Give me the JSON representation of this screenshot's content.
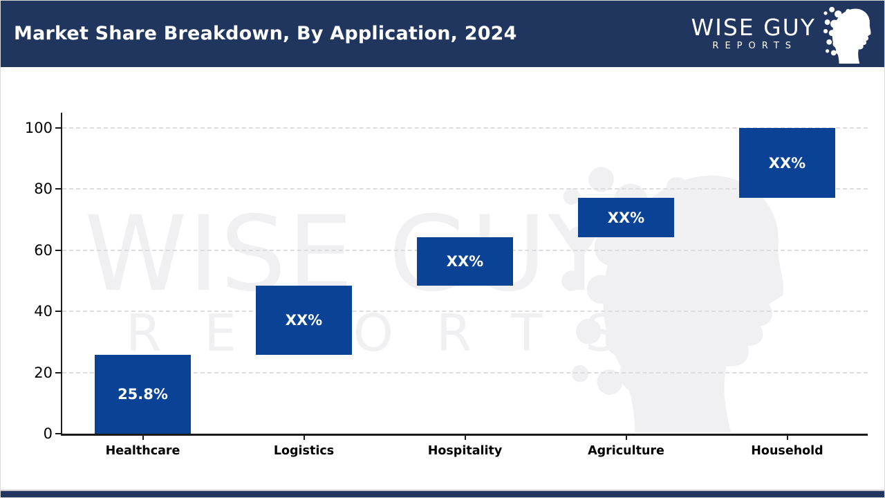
{
  "header": {
    "title": "Market Share Breakdown, By Application, 2024",
    "bg_color": "#21365f",
    "logo": {
      "line1": "WISE GUY",
      "line2": "REPORTS"
    }
  },
  "watermark": {
    "line1": "WISE GUY",
    "line2": "REPORTS"
  },
  "chart_data": {
    "type": "bar",
    "subtype": "waterfall",
    "title": "Market Share Breakdown, By Application, 2024",
    "categories": [
      "Healthcare",
      "Logistics",
      "Hospitality",
      "Agriculture",
      "Household"
    ],
    "segments": [
      {
        "category": "Healthcare",
        "start": 0,
        "end": 25.8,
        "label": "25.8%"
      },
      {
        "category": "Logistics",
        "start": 25.8,
        "end": 48.4,
        "label": "XX%"
      },
      {
        "category": "Hospitality",
        "start": 48.4,
        "end": 64.2,
        "label": "XX%"
      },
      {
        "category": "Agriculture",
        "start": 64.2,
        "end": 77.1,
        "label": "XX%"
      },
      {
        "category": "Household",
        "start": 77.1,
        "end": 100,
        "label": "XX%"
      }
    ],
    "y_ticks": [
      0,
      20,
      40,
      60,
      80,
      100
    ],
    "ylim": [
      0,
      105
    ],
    "xlabel": "",
    "ylabel": "",
    "grid": "horizontal-dashed",
    "legend": "none",
    "bar_color": "#0a4296",
    "bar_label_color": "#ffffff",
    "axis_color": "#1a1a1a"
  }
}
